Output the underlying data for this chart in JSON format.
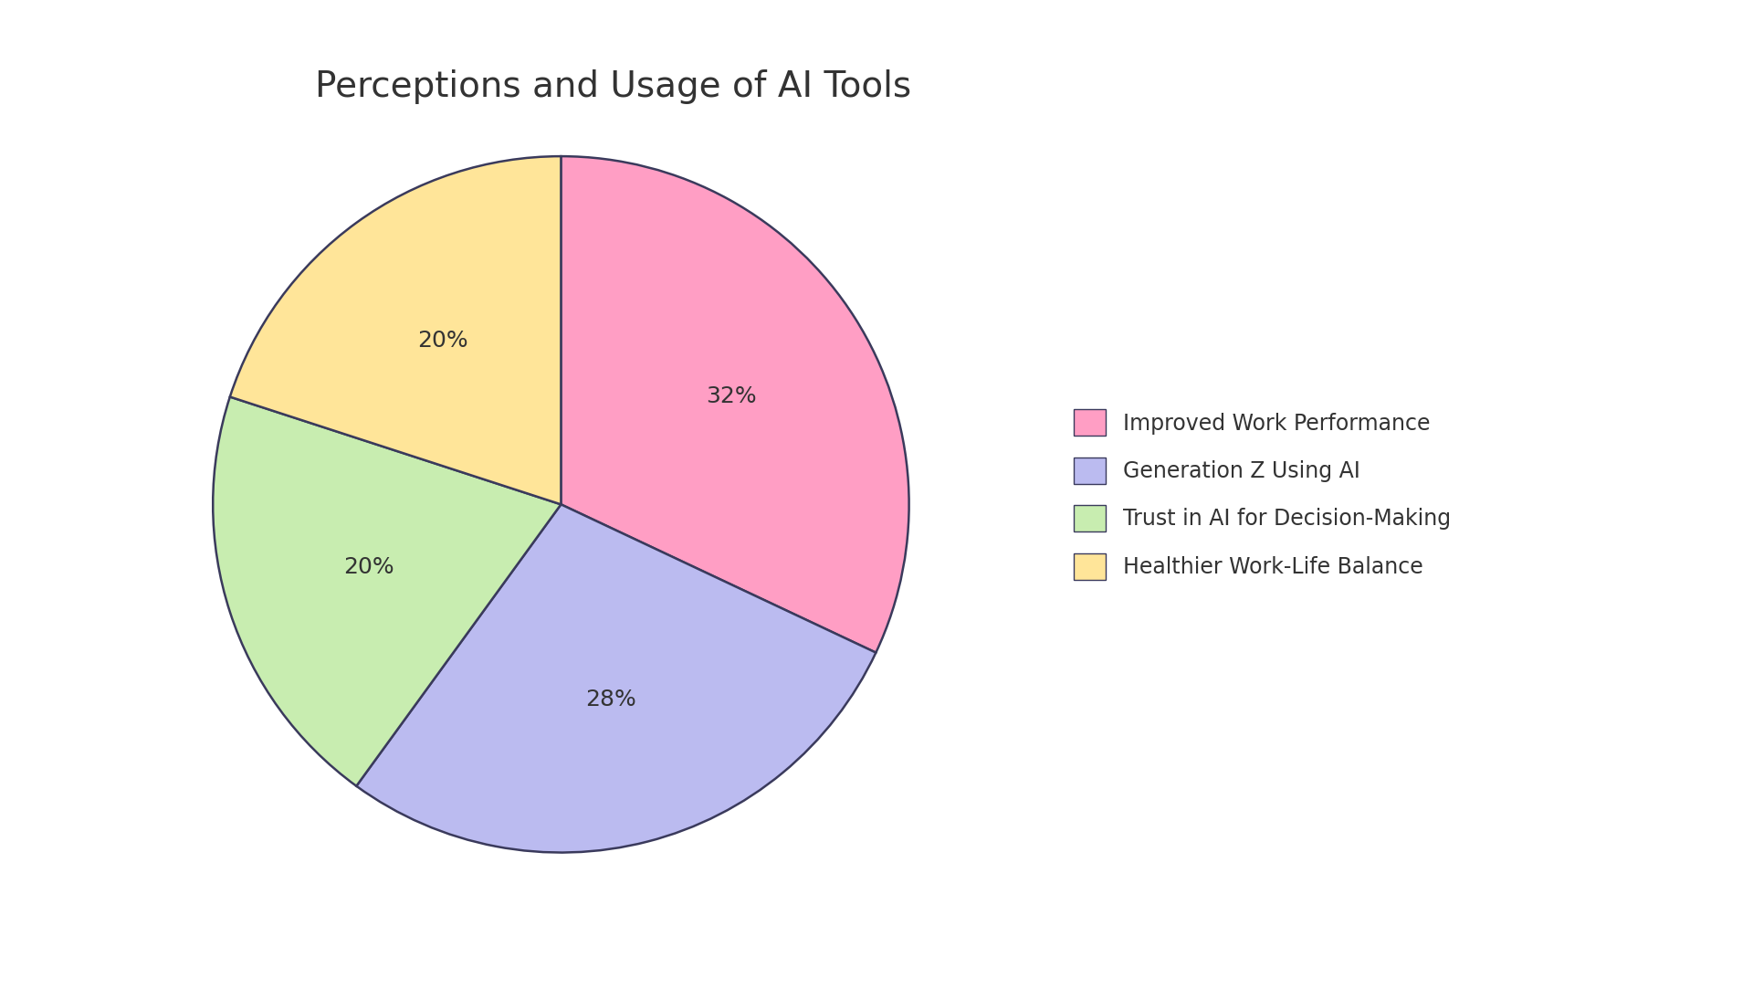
{
  "title": "Perceptions and Usage of AI Tools",
  "slices": [
    {
      "label": "Improved Work Performance",
      "value": 32,
      "color": "#FF9EC4",
      "pct_label": "32%"
    },
    {
      "label": "Generation Z Using AI",
      "value": 28,
      "color": "#BBBBF0",
      "pct_label": "28%"
    },
    {
      "label": "Trust in AI for Decision-Making",
      "value": 20,
      "color": "#C8EDB0",
      "pct_label": "20%"
    },
    {
      "label": "Healthier Work-Life Balance",
      "value": 20,
      "color": "#FFE599",
      "pct_label": "20%"
    }
  ],
  "edge_color": "#3A3A5C",
  "edge_width": 1.8,
  "background_color": "#FFFFFF",
  "title_fontsize": 28,
  "title_color": "#333333",
  "label_fontsize": 18,
  "label_color": "#333333",
  "legend_fontsize": 17,
  "legend_color": "#333333",
  "startangle": 90
}
